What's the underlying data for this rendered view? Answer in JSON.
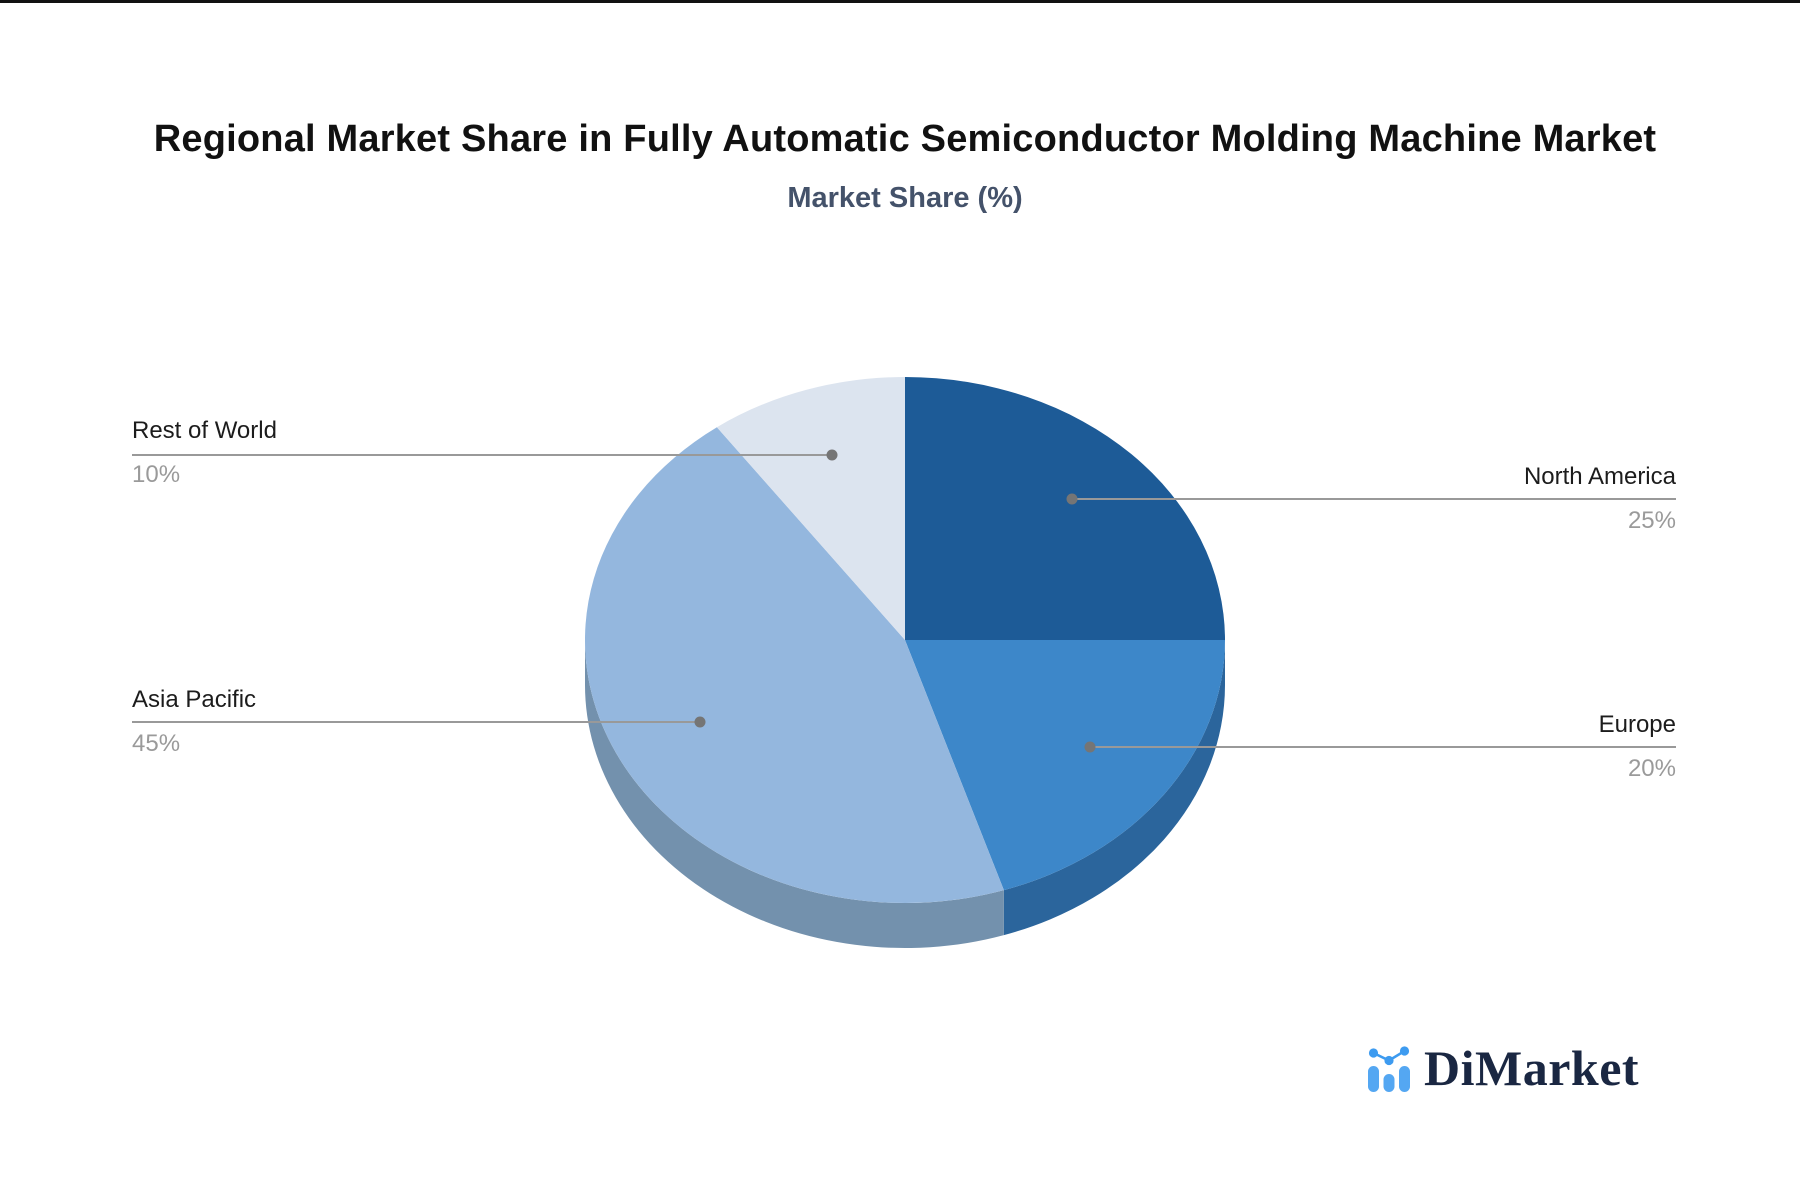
{
  "chart_data": {
    "type": "pie",
    "title": "Regional Market Share in Fully Automatic Semiconductor Molding Machine Market",
    "subtitle": "Market Share (%)",
    "unit": "%",
    "effect": "3d",
    "start_angle_deg": 0,
    "direction": "clockwise",
    "legend_position": "callout-labels",
    "slices": [
      {
        "label": "North America",
        "value": 25,
        "percent_label": "25%",
        "color": "#1d5b97",
        "side_color": "#2b659c"
      },
      {
        "label": "Europe",
        "value": 20,
        "percent_label": "20%",
        "color": "#3d87c9",
        "side_color": "#2b659c"
      },
      {
        "label": "Asia Pacific",
        "value": 45,
        "percent_label": "45%",
        "color": "#94b7de",
        "side_color": "#7391ad"
      },
      {
        "label": "Rest of World",
        "value": 10,
        "percent_label": "10%",
        "color": "#dce4ef",
        "side_color": "#b9c2cf"
      }
    ],
    "callout_line_color": "#999999",
    "callout_dot_color": "#757575",
    "label_color": "#1c1c1c",
    "percent_color": "#9a9a9a"
  },
  "brand": {
    "name": "DiMarket",
    "icon": "bar-chart-trend-icon",
    "text_color": "#1a2742",
    "icon_color": "#54a7f2"
  }
}
